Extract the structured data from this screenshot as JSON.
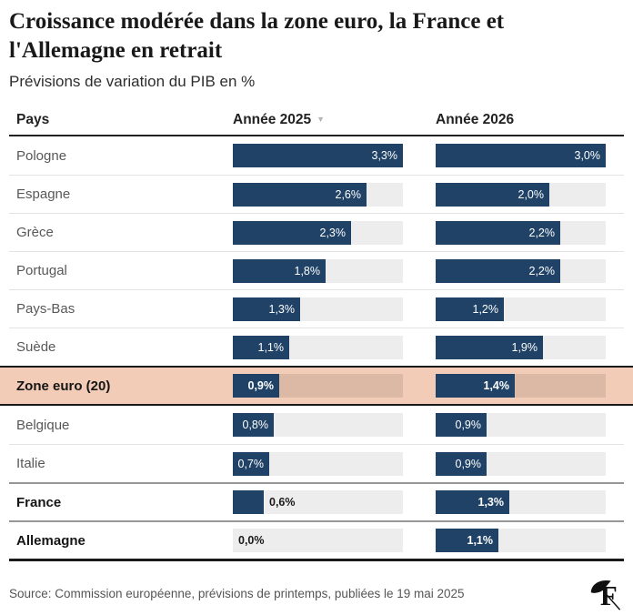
{
  "title": "Croissance modérée dans la zone euro, la France et l'Allemagne en retrait",
  "subtitle": "Prévisions de variation du PIB en %",
  "source": "Source: Commission européenne, prévisions de printemps, publiées le 19 mai 2025",
  "logo_icon": "figaro-f-logo",
  "colors": {
    "bar": "#1f4266",
    "track": "#ededed",
    "highlight_bg": "#f2ccb7",
    "highlight_track": "#dcb9a4",
    "separator_light": "#e3e3e3",
    "separator_strong": "#979797",
    "rule_dark": "#1a1a1a"
  },
  "columns": [
    {
      "key": "pays",
      "label": "Pays"
    },
    {
      "key": "y2025",
      "label": "Année 2025",
      "sort_icon": "▼"
    },
    {
      "key": "y2026",
      "label": "Année 2026",
      "sort_icon": ""
    }
  ],
  "chart_data": {
    "type": "bar",
    "orientation": "horizontal",
    "title": "Croissance modérée dans la zone euro, la France et l'Allemagne en retrait",
    "subtitle": "Prévisions de variation du PIB en %",
    "value_unit": "%",
    "decimal_separator": ",",
    "column_max": {
      "y2025": 3.3,
      "y2026": 3.0
    },
    "categories": [
      "Pologne",
      "Espagne",
      "Grèce",
      "Portugal",
      "Pays-Bas",
      "Suède",
      "Zone euro (20)",
      "Belgique",
      "Italie",
      "France",
      "Allemagne"
    ],
    "series": [
      {
        "name": "Année 2025",
        "values": [
          3.3,
          2.6,
          2.3,
          1.8,
          1.3,
          1.1,
          0.9,
          0.8,
          0.7,
          0.6,
          0.0
        ]
      },
      {
        "name": "Année 2026",
        "values": [
          3.0,
          2.0,
          2.2,
          2.2,
          1.2,
          1.9,
          1.4,
          0.9,
          0.9,
          1.3,
          1.1
        ]
      }
    ],
    "rows": [
      {
        "pays": "Pologne",
        "y2025": 3.3,
        "y2026": 3.0,
        "style": "normal",
        "sep": "none"
      },
      {
        "pays": "Espagne",
        "y2025": 2.6,
        "y2026": 2.0,
        "style": "normal",
        "sep": "light"
      },
      {
        "pays": "Grèce",
        "y2025": 2.3,
        "y2026": 2.2,
        "style": "normal",
        "sep": "light"
      },
      {
        "pays": "Portugal",
        "y2025": 1.8,
        "y2026": 2.2,
        "style": "normal",
        "sep": "light"
      },
      {
        "pays": "Pays-Bas",
        "y2025": 1.3,
        "y2026": 1.2,
        "style": "normal",
        "sep": "light"
      },
      {
        "pays": "Suède",
        "y2025": 1.1,
        "y2026": 1.9,
        "style": "normal",
        "sep": "light"
      },
      {
        "pays": "Zone euro (20)",
        "y2025": 0.9,
        "y2026": 1.4,
        "style": "highlight",
        "sep": "none"
      },
      {
        "pays": "Belgique",
        "y2025": 0.8,
        "y2026": 0.9,
        "style": "normal",
        "sep": "none"
      },
      {
        "pays": "Italie",
        "y2025": 0.7,
        "y2026": 0.9,
        "style": "normal",
        "sep": "light"
      },
      {
        "pays": "France",
        "y2025": 0.6,
        "y2026": 1.3,
        "style": "bold",
        "sep": "strong"
      },
      {
        "pays": "Allemagne",
        "y2025": 0.0,
        "y2026": 1.1,
        "style": "bold",
        "sep": "strong"
      }
    ],
    "highlighted_category": "Zone euro (20)",
    "bold_categories": [
      "Zone euro (20)",
      "France",
      "Allemagne"
    ]
  }
}
